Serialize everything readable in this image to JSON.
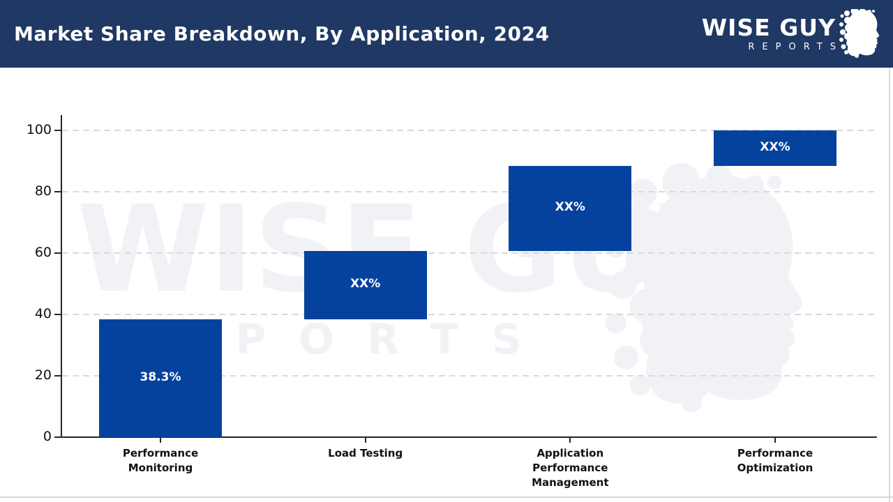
{
  "header": {
    "title": "Market Share Breakdown, By Application, 2024",
    "logo_line1": "WISE GUY",
    "logo_line2": "REPORTS",
    "bg_color": "#1f3864"
  },
  "watermark": {
    "line1": "WISE GUY",
    "line2": "REPORTS"
  },
  "chart_data": {
    "type": "bar",
    "variant": "floating-waterfall",
    "title": "Market Share Breakdown, By Application, 2024",
    "categories": [
      "Performance\nMonitoring",
      "Load Testing",
      "Application\nPerformance\nManagement",
      "Performance\nOptimization"
    ],
    "bars": [
      {
        "category": "Performance Monitoring",
        "start": 0,
        "end": 38.3,
        "label": "38.3%"
      },
      {
        "category": "Load Testing",
        "start": 38.3,
        "end": 60.6,
        "label": "XX%"
      },
      {
        "category": "Application Performance Management",
        "start": 60.6,
        "end": 88.4,
        "label": "XX%"
      },
      {
        "category": "Performance Optimization",
        "start": 88.4,
        "end": 100,
        "label": "XX%"
      }
    ],
    "ylim": [
      0,
      100
    ],
    "yticks": [
      0,
      20,
      40,
      60,
      80,
      100
    ],
    "xlabel": "",
    "ylabel": "",
    "grid": "horizontal-dashed",
    "legend": "none",
    "bar_color": "#05429e",
    "bar_label_color": "#ffffff",
    "axis_color": "#262626",
    "grid_color": "#dadada",
    "tick_label_color": "#111111"
  }
}
